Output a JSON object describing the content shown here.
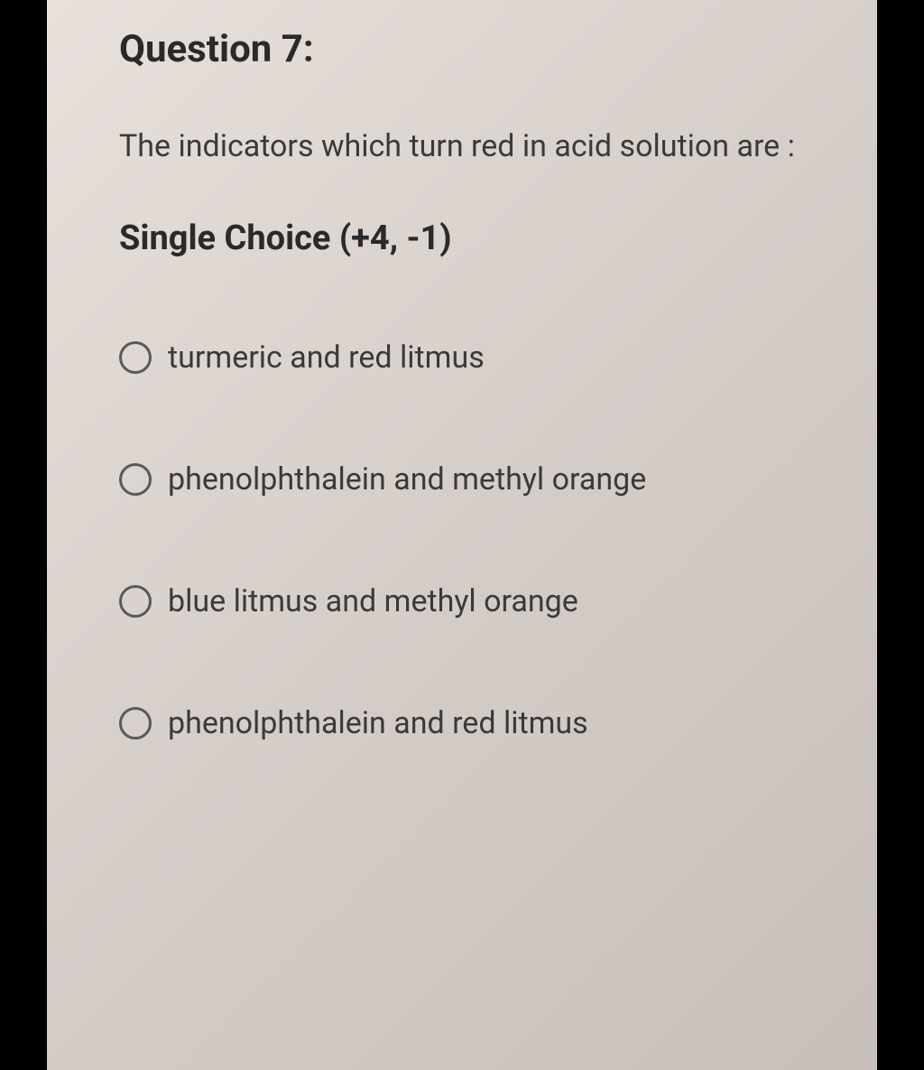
{
  "question": {
    "title": "Question 7:",
    "text": "The indicators which turn red in acid solution are :",
    "choice_label": "Single Choice (+4, -1)",
    "options": [
      {
        "label": "turmeric and red litmus"
      },
      {
        "label": "phenolphthalein and methyl orange"
      },
      {
        "label": "blue litmus and methyl orange"
      },
      {
        "label": "phenolphthalein and red litmus"
      }
    ]
  },
  "styling": {
    "background_color": "#000000",
    "card_gradient_start": "#e8e0db",
    "card_gradient_mid": "#d5cdc8",
    "card_gradient_end": "#c8bfba",
    "title_color": "#2a2a2a",
    "text_color": "#3a3a3a",
    "radio_border_color": "#5a5a5a",
    "title_fontsize": 42,
    "text_fontsize": 34,
    "choice_label_fontsize": 38,
    "option_fontsize": 34,
    "radio_size": 36,
    "option_gap": 95
  }
}
